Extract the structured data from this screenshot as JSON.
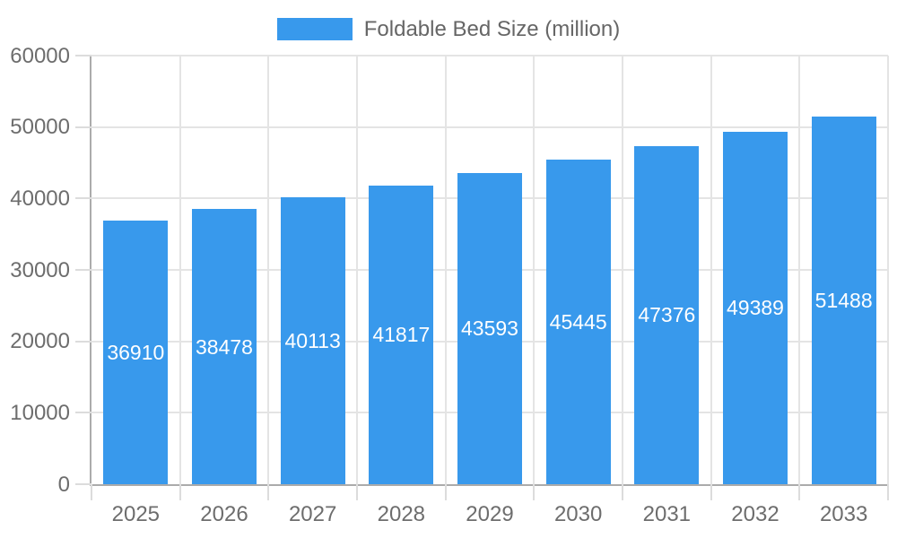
{
  "chart_data": {
    "type": "bar",
    "title": "Foldable Bed Size (million)",
    "legend_position": "top",
    "categories": [
      "2025",
      "2026",
      "2027",
      "2028",
      "2029",
      "2030",
      "2031",
      "2032",
      "2033"
    ],
    "series": [
      {
        "name": "Foldable Bed Size (million)",
        "values": [
          36910,
          38478,
          40113,
          41817,
          43593,
          45445,
          47376,
          49389,
          51488
        ]
      }
    ],
    "values": [
      36910,
      38478,
      40113,
      41817,
      43593,
      45445,
      47376,
      49389,
      51488
    ],
    "value_labels_shown": true,
    "xlabel": "",
    "ylabel": "",
    "ylim": [
      0,
      60000
    ],
    "ytick_step": 10000,
    "yticks": [
      0,
      10000,
      20000,
      30000,
      40000,
      50000,
      60000
    ],
    "grid": true,
    "colors": {
      "bar": "#3899ec",
      "grid": "#e4e4e4",
      "tick": "#dcdcdc",
      "axis": "#ababab",
      "tick_text": "#6d6d6d",
      "legend_text": "#666666",
      "value_label": "#ffffff",
      "background": "#ffffff"
    }
  }
}
